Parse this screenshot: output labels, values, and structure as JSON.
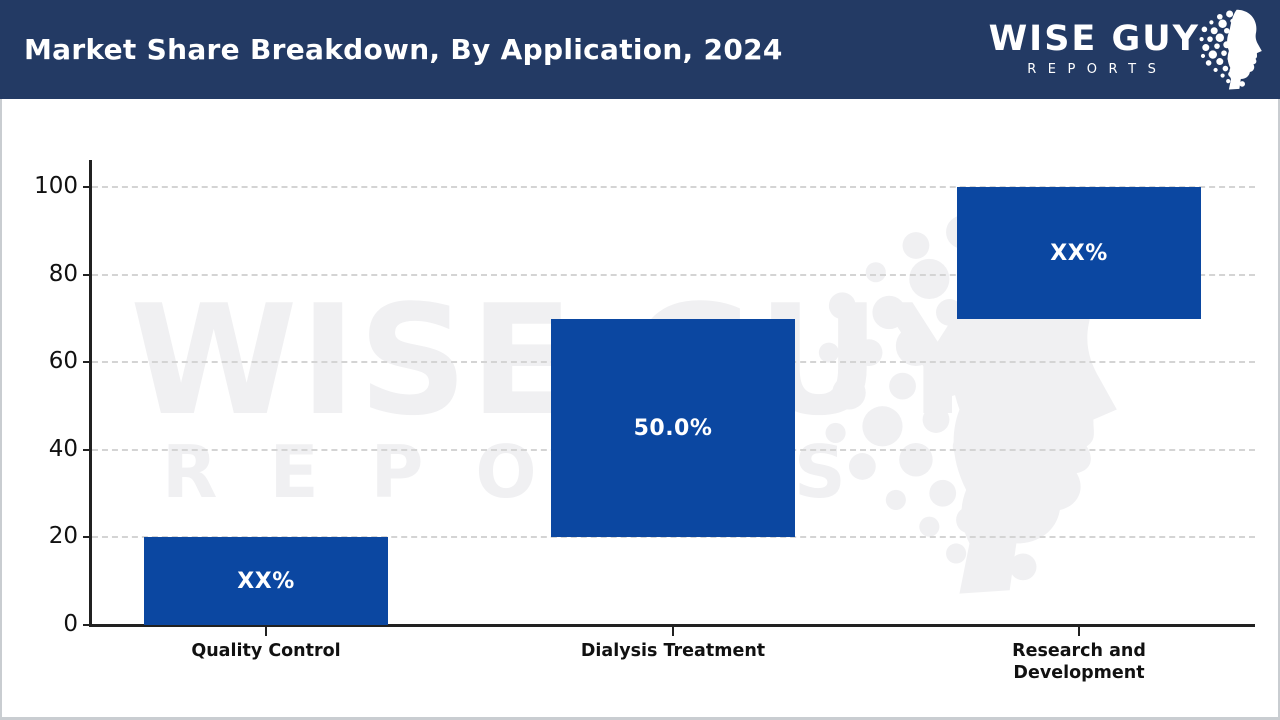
{
  "header": {
    "title": "Market Share Breakdown, By Application, 2024",
    "logo": {
      "line1": "WISE GUY",
      "line2": "REPORTS"
    }
  },
  "watermark": {
    "line1": "WISE GUY",
    "line2": "REPORTS"
  },
  "chart_data": {
    "type": "bar",
    "subtype": "floating-segment (waterfall-style market share)",
    "title": "Market Share Breakdown, By Application, 2024",
    "categories": [
      "Quality Control",
      "Dialysis Treatment",
      "Research and Development"
    ],
    "series": [
      {
        "category": "Quality Control",
        "from": 0,
        "to": 20,
        "label": "XX%"
      },
      {
        "category": "Dialysis Treatment",
        "from": 20,
        "to": 70,
        "label": "50.0%"
      },
      {
        "category": "Research and Development",
        "from": 70,
        "to": 100,
        "label": "XX%"
      }
    ],
    "xlabel": "",
    "ylabel": "",
    "ylim": [
      0,
      100
    ],
    "yticks": [
      0,
      20,
      40,
      60,
      80,
      100
    ],
    "grid": "horizontal-dashed",
    "legend": "none",
    "bar_color": "#0B47A1",
    "bar_label_color": "#FFFFFF"
  },
  "colors": {
    "header_bg": "#233A64",
    "bar": "#0B47A1",
    "axis": "#212121",
    "grid": "#D4D4D4",
    "watermark": "#F0F0F2",
    "page_border": "#C9CDD1",
    "tick_text": "#111111"
  }
}
